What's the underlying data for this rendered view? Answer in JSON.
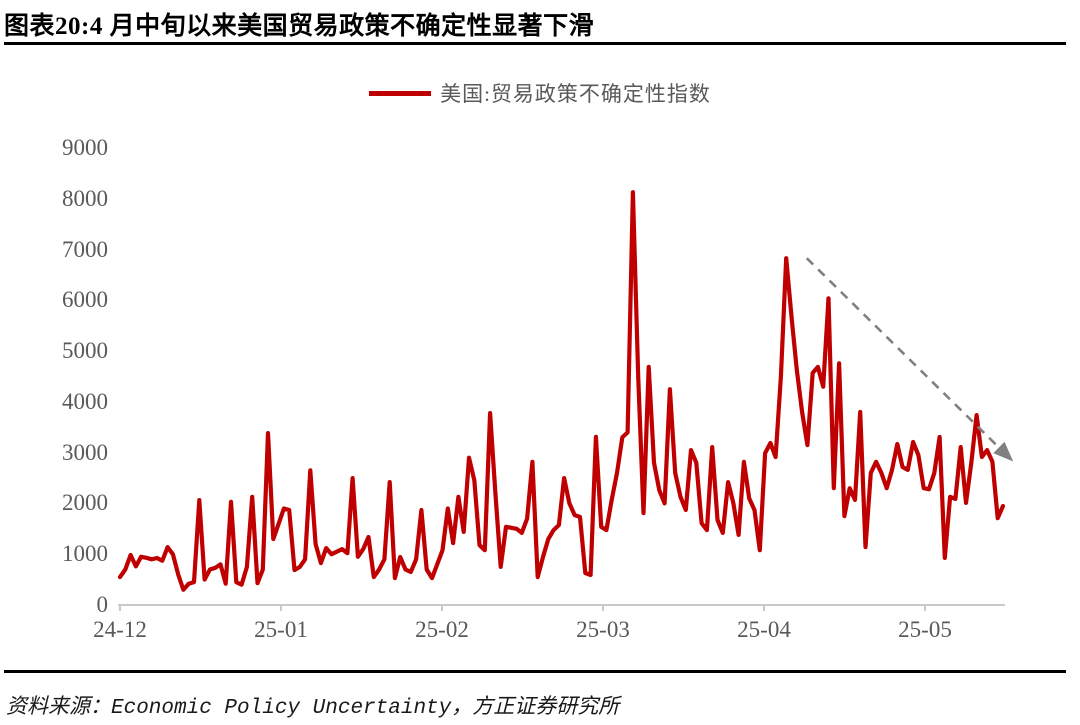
{
  "title": "图表20:4 月中旬以来美国贸易政策不确定性显著下滑",
  "source_note": "资料来源：Economic Policy Uncertainty，方正证券研究所",
  "legend": {
    "label": "美国:贸易政策不确定性指数"
  },
  "colors": {
    "line": "#C00000",
    "axis": "#C9C9C9",
    "tick_text": "#595959",
    "arrow": "#808080",
    "rule": "#000000"
  },
  "chart_data": {
    "type": "line",
    "title": "图表20:4 月中旬以来美国贸易政策不确定性显著下滑",
    "series_name": "美国:贸易政策不确定性指数",
    "frequency": "daily",
    "x_start": "2024-12-01",
    "x_tick_labels": [
      "24-12",
      "25-01",
      "25-02",
      "25-03",
      "25-04",
      "25-05"
    ],
    "y_ticks": [
      0,
      1000,
      2000,
      3000,
      4000,
      5000,
      6000,
      7000,
      8000,
      9000
    ],
    "ylim": [
      0,
      9000
    ],
    "grid": false,
    "legend_position": "top-center",
    "values": [
      550,
      700,
      985,
      760,
      950,
      930,
      900,
      925,
      870,
      1140,
      1000,
      600,
      300,
      420,
      450,
      2065,
      500,
      700,
      730,
      800,
      420,
      2030,
      450,
      400,
      750,
      2130,
      430,
      700,
      3385,
      1300,
      1600,
      1900,
      1870,
      690,
      750,
      900,
      2650,
      1200,
      825,
      1120,
      1000,
      1050,
      1100,
      1020,
      2500,
      950,
      1100,
      1340,
      550,
      700,
      900,
      2420,
      530,
      945,
      700,
      650,
      900,
      1870,
      700,
      530,
      800,
      1080,
      1900,
      1220,
      2130,
      1440,
      2900,
      2460,
      1180,
      1080,
      3780,
      2200,
      750,
      1540,
      1520,
      1500,
      1420,
      1700,
      2820,
      550,
      945,
      1300,
      1475,
      1575,
      2500,
      2000,
      1770,
      1735,
      630,
      590,
      3310,
      1540,
      1475,
      2070,
      2600,
      3300,
      3400,
      8130,
      4500,
      1810,
      4690,
      2800,
      2260,
      2000,
      4250,
      2600,
      2130,
      1870,
      3050,
      2800,
      1610,
      1475,
      3110,
      1675,
      1420,
      2420,
      2010,
      1380,
      2820,
      2100,
      1870,
      1080,
      2990,
      3190,
      2915,
      4500,
      6830,
      5680,
      4630,
      3800,
      3150,
      4570,
      4690,
      4300,
      6040,
      2300,
      4760,
      1750,
      2300,
      2070,
      3800,
      1140,
      2600,
      2820,
      2600,
      2300,
      2660,
      3170,
      2720,
      2660,
      3210,
      2950,
      2300,
      2280,
      2600,
      3310,
      925,
      2130,
      2090,
      3110,
      2010,
      2800,
      3740,
      2915,
      3050,
      2820,
      1710,
      1950
    ],
    "annotation_arrow": {
      "style": "dashed",
      "from_frac_x": 0.776,
      "from_value": 6830,
      "to_frac_x": 1.002,
      "to_value": 2950
    }
  }
}
